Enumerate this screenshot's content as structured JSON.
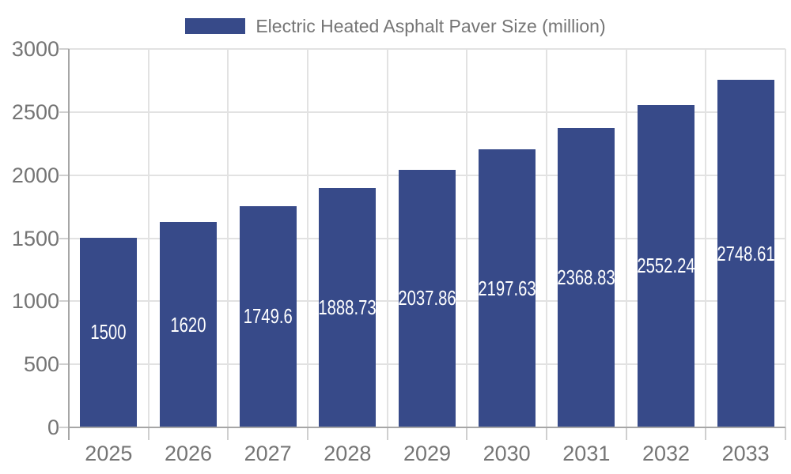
{
  "legend": {
    "label": "Electric Heated Asphalt Paver Size (million)"
  },
  "chart_data": {
    "type": "bar",
    "title": "Electric Heated Asphalt Paver Size (million)",
    "categories": [
      "2025",
      "2026",
      "2027",
      "2028",
      "2029",
      "2030",
      "2031",
      "2032",
      "2033"
    ],
    "values": [
      1500,
      1620,
      1749.6,
      1888.73,
      2037.86,
      2197.63,
      2368.83,
      2552.24,
      2748.61
    ],
    "bar_labels": [
      "1500",
      "1620",
      "1749.6",
      "1888.73",
      "2037.86",
      "2197.63",
      "2368.83",
      "2552.24",
      "2748.61"
    ],
    "xlabel": "",
    "ylabel": "",
    "ylim": [
      0,
      3000
    ],
    "yticks": [
      0,
      500,
      1000,
      1500,
      2000,
      2500,
      3000
    ],
    "grid": true,
    "legend_position": "top-center",
    "colors": {
      "bar": "#374a89",
      "grid": "#e2e2e2",
      "axis": "#a6a6a6",
      "tick_text": "#757575",
      "bar_label_text": "#ffffff",
      "background": "#ffffff"
    }
  }
}
